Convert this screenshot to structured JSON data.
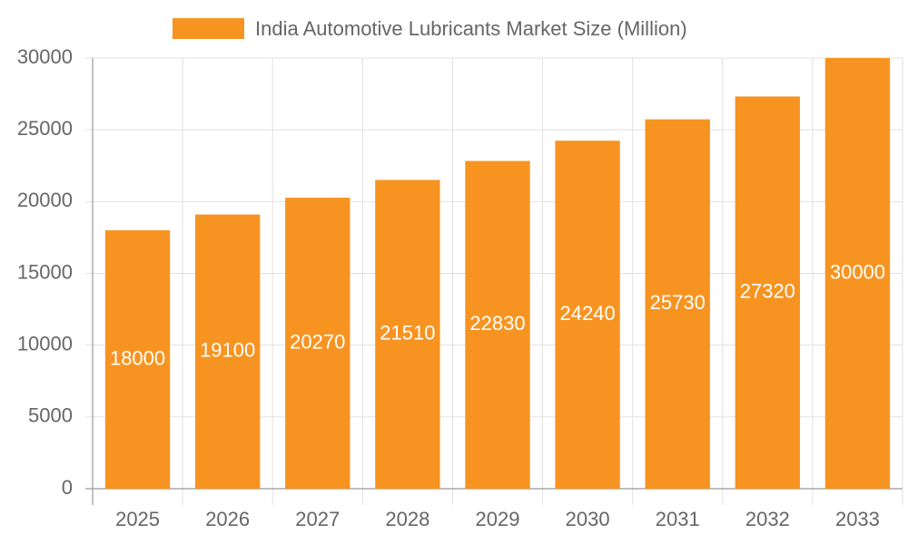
{
  "chart_data": {
    "type": "bar",
    "categories": [
      "2025",
      "2026",
      "2027",
      "2028",
      "2029",
      "2030",
      "2031",
      "2032",
      "2033"
    ],
    "series": [
      {
        "name": "India Automotive Lubricants Market Size (Million)",
        "color": "#f79421",
        "values": [
          18000,
          19100,
          20270,
          21510,
          22830,
          24240,
          25730,
          27320,
          30000
        ]
      }
    ],
    "ylim": [
      0,
      30000
    ],
    "yticks": [
      0,
      5000,
      10000,
      15000,
      20000,
      25000,
      30000
    ],
    "grid": true,
    "legend": "top",
    "data_labels": true
  }
}
